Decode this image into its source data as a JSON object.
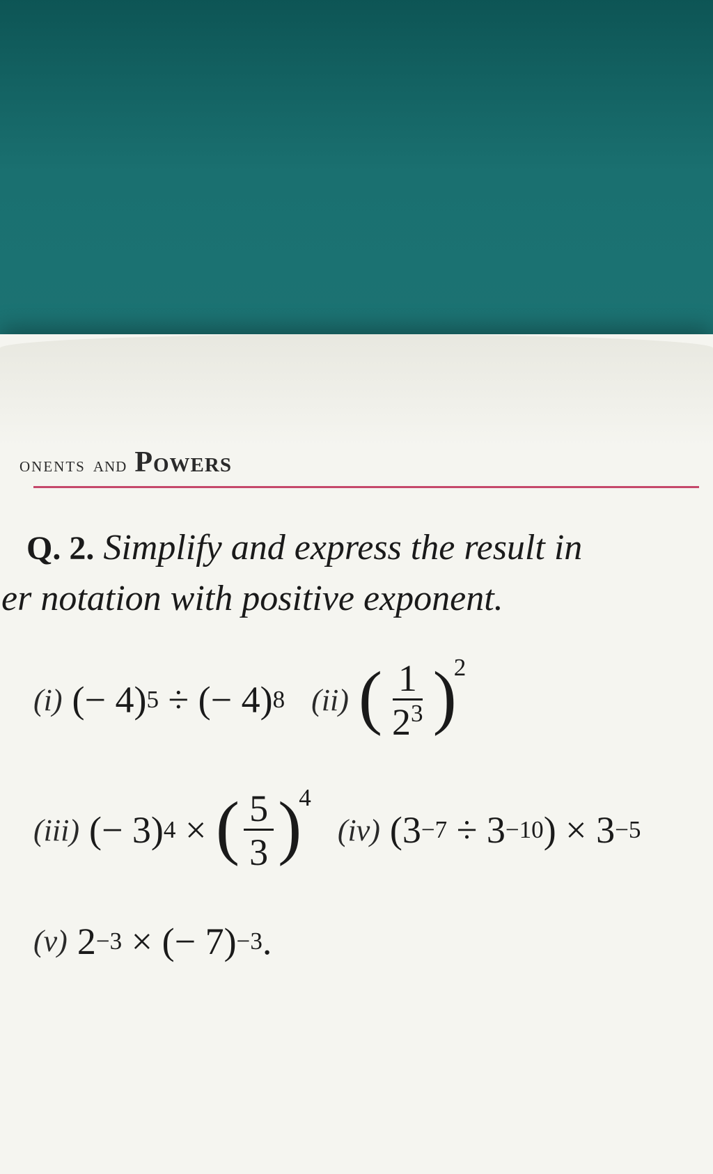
{
  "colors": {
    "background_teal": "#1a6b6b",
    "page_bg": "#f5f5f0",
    "divider": "#c5486b",
    "text": "#1a1a1a"
  },
  "chapter": {
    "prefix": "onents",
    "connector": "and",
    "title": "Powers"
  },
  "question": {
    "number": "Q. 2.",
    "line1": "Simplify and express the result in",
    "line2": "er notation with positive exponent."
  },
  "options": {
    "i": {
      "label": "(i)",
      "expr": "(− 4)⁵ ÷ (− 4)⁸"
    },
    "ii": {
      "label": "(ii)",
      "frac_num": "1",
      "frac_den_base": "2",
      "frac_den_exp": "3",
      "outer_exp": "2"
    },
    "iii": {
      "label": "(iii)",
      "first": "(− 3)⁴ ×",
      "frac_num": "5",
      "frac_den": "3",
      "outer_exp": "4"
    },
    "iv": {
      "label": "(iv)",
      "expr": "(3⁻⁷ ÷ 3⁻¹⁰) × 3⁻⁵"
    },
    "v": {
      "label": "(v)",
      "expr": "2⁻³ × (− 7)⁻³."
    }
  }
}
